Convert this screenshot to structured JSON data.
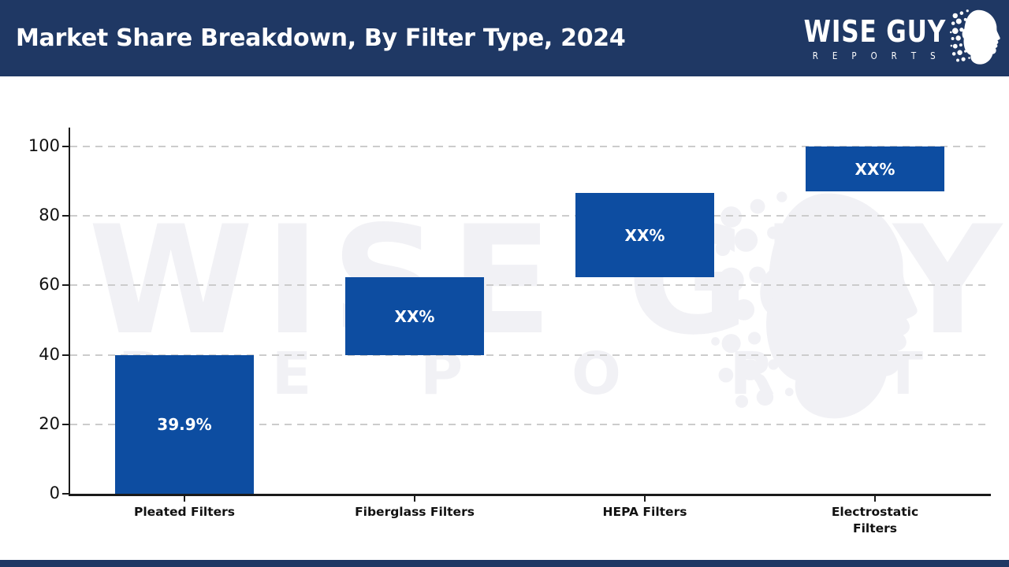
{
  "header": {
    "title": "Market Share Breakdown, By Filter Type, 2024",
    "logo": {
      "line1": "WISE GUY",
      "line2": "R E P O R T S"
    }
  },
  "watermark": {
    "line1": "WISE GUY",
    "line2": "R E P O R T S"
  },
  "chart_data": {
    "type": "bar",
    "variant": "waterfall",
    "title": "Market Share Breakdown, By Filter Type, 2024",
    "categories": [
      "Pleated Filters",
      "Fiberglass Filters",
      "HEPA Filters",
      "Electrostatic\nFilters"
    ],
    "segments": [
      {
        "category": "Pleated Filters",
        "start": 0,
        "end": 39.9,
        "label": "39.9%"
      },
      {
        "category": "Fiberglass Filters",
        "start": 39.9,
        "end": 62.3,
        "label": "XX%"
      },
      {
        "category": "HEPA Filters",
        "start": 62.3,
        "end": 86.6,
        "label": "XX%"
      },
      {
        "category": "Electrostatic Filters",
        "start": 87.0,
        "end": 100,
        "label": "XX%"
      }
    ],
    "xlabel": "",
    "ylabel": "",
    "ylim": [
      0,
      100
    ],
    "yticks": [
      0,
      20,
      40,
      60,
      80,
      100
    ],
    "grid": "horizontal-dashed",
    "legend": "none"
  },
  "colors": {
    "header_bg": "#1f3864",
    "footer_bg": "#1f3864",
    "bar": "#0d4da1",
    "bar_label": "#ffffff",
    "grid": "#cccccc",
    "axis": "#1a1a1a",
    "watermark": "#f1f1f5"
  }
}
